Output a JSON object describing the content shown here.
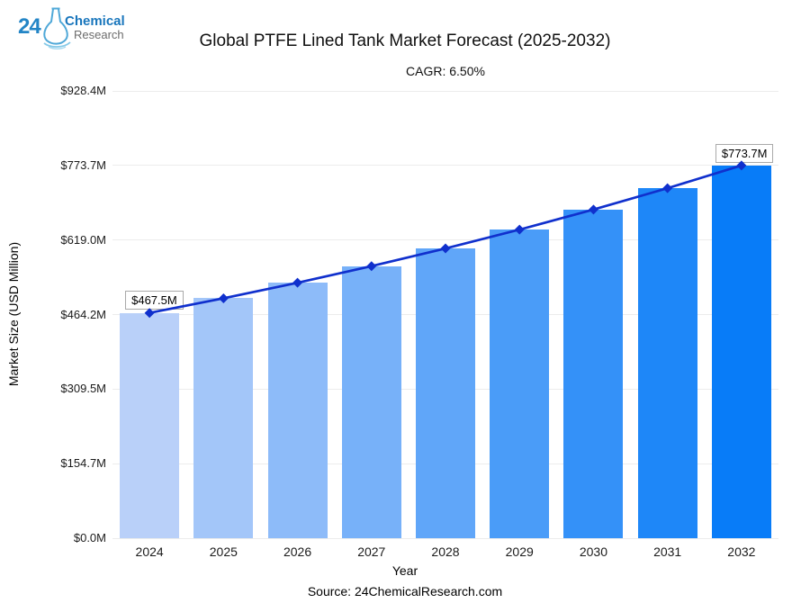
{
  "logo": {
    "number": "24",
    "word1": "Chemical",
    "word2": "Research"
  },
  "header": {
    "title": "Global PTFE Lined Tank Market Forecast (2025-2032)",
    "subtitle": "CAGR: 6.50%"
  },
  "source": "Source: 24ChemicalResearch.com",
  "chart_data": {
    "type": "bar",
    "overlay": "line-with-diamond-markers",
    "title": "Global PTFE Lined Tank Market Forecast (2025-2032)",
    "subtitle": "CAGR: 6.50%",
    "xlabel": "Year",
    "ylabel": "Market Size (USD Million)",
    "categories": [
      "2024",
      "2025",
      "2026",
      "2027",
      "2028",
      "2029",
      "2030",
      "2031",
      "2032"
    ],
    "values": [
      467.5,
      497.9,
      530.2,
      564.7,
      601.4,
      640.5,
      682.1,
      726.4,
      773.7
    ],
    "ylim": [
      0,
      928.4
    ],
    "grid": true,
    "legend": null,
    "y_ticks": [
      {
        "value": 0,
        "label": "$0.0M"
      },
      {
        "value": 154.7,
        "label": "$154.7M"
      },
      {
        "value": 309.5,
        "label": "$309.5M"
      },
      {
        "value": 464.2,
        "label": "$464.2M"
      },
      {
        "value": 619.0,
        "label": "$619.0M"
      },
      {
        "value": 773.7,
        "label": "$773.7M"
      },
      {
        "value": 928.4,
        "label": "$928.4M"
      }
    ],
    "point_labels": {
      "first": "$467.5M",
      "last": "$773.7M"
    },
    "bar_colors": [
      "#B9D0F9",
      "#A3C6F9",
      "#8DBBF9",
      "#77B1F9",
      "#60A6F9",
      "#4A9CF8",
      "#3491F8",
      "#1E87F8",
      "#087CF8"
    ],
    "line_color": "#1030CD",
    "grid_color": "#ECECEC"
  }
}
